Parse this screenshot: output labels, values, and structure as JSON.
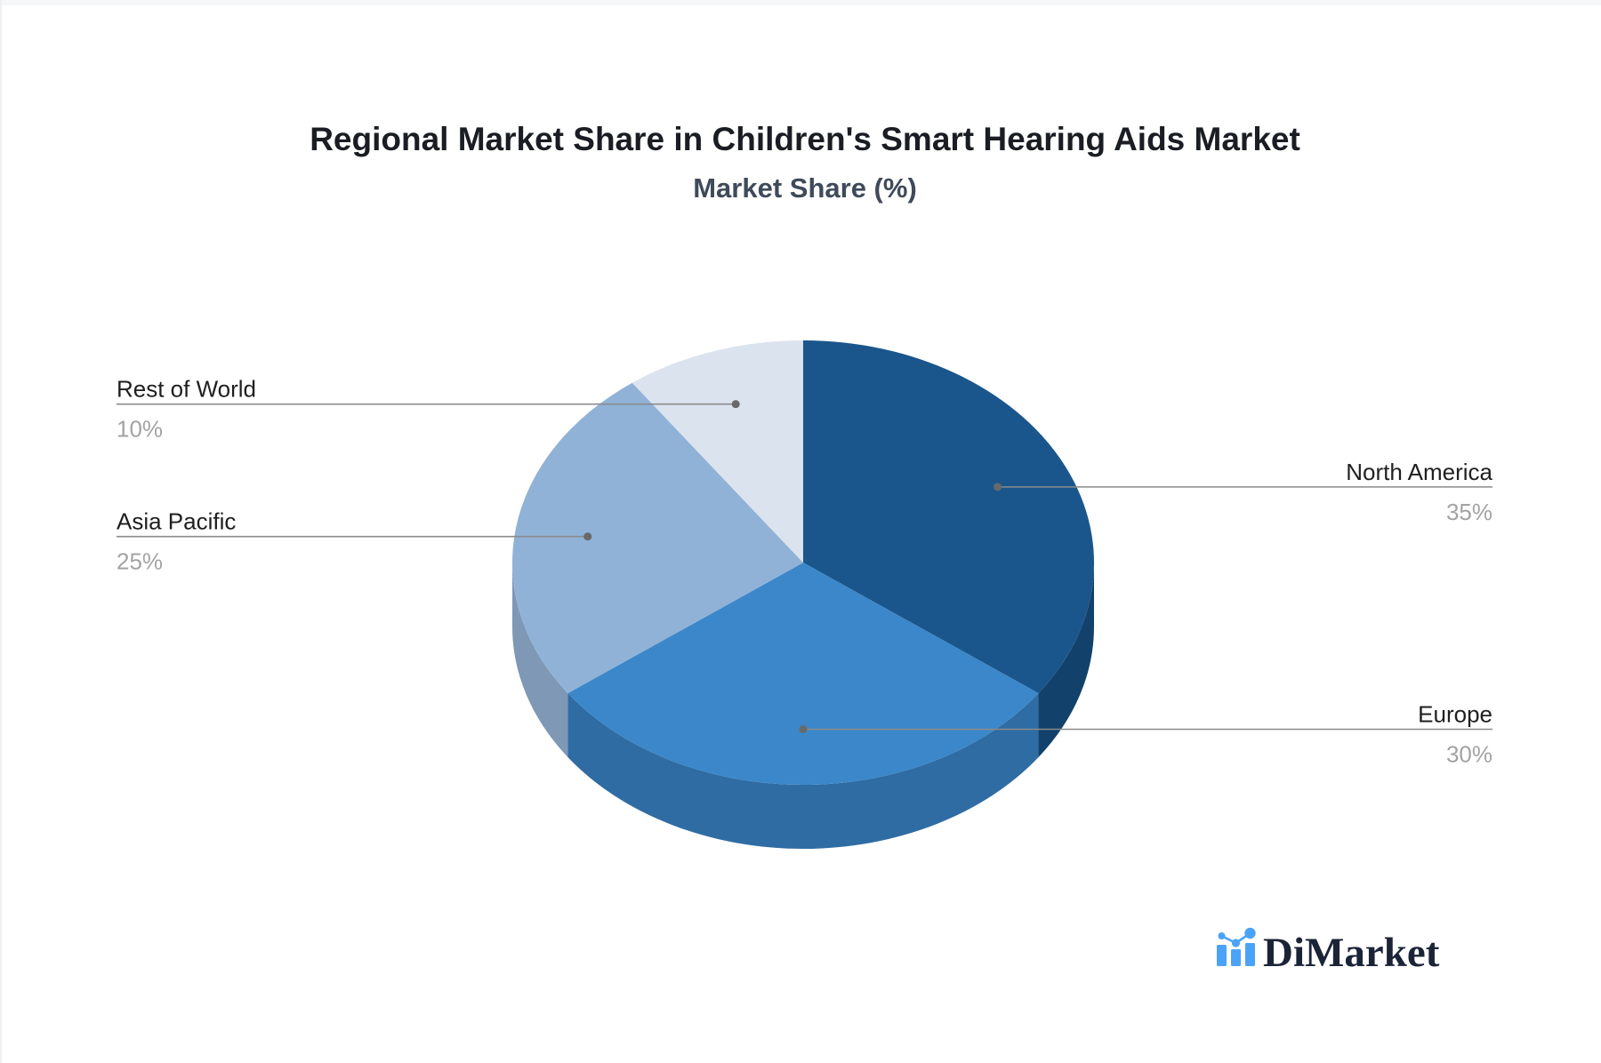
{
  "header": {
    "title": "Regional Market Share in Children's Smart Hearing Aids Market",
    "subtitle": "Market Share (%)",
    "title_color": "#1a1d23",
    "subtitle_color": "#3f4a5a"
  },
  "chart_data": {
    "type": "pie",
    "style": "3d",
    "title": "Regional Market Share in Children's Smart Hearing Aids Market",
    "subtitle": "Market Share (%)",
    "unit": "%",
    "start_angle_deg": 0,
    "direction": "clockwise",
    "legend_position": "callout-labels",
    "slices": [
      {
        "label": "North America",
        "value": 35,
        "display": "35%",
        "color": "#1A568C",
        "side_color": "#12416B",
        "label_side": "right"
      },
      {
        "label": "Europe",
        "value": 30,
        "display": "30%",
        "color": "#3B87C9",
        "side_color": "#2F6CA3",
        "label_side": "right"
      },
      {
        "label": "Asia Pacific",
        "value": 25,
        "display": "25%",
        "color": "#90B2D7",
        "side_color": "#7E98B5",
        "label_side": "left"
      },
      {
        "label": "Rest of World",
        "value": 10,
        "display": "10%",
        "color": "#DBE3EE",
        "side_color": "#C3CEDD",
        "label_side": "left"
      }
    ],
    "colors": {
      "label_text": "#1f1f1f",
      "pct_text": "#a3a3a3",
      "leader_line": "#8b8b8b",
      "leader_dot": "#696969"
    }
  },
  "logo": {
    "text": "DiMarket",
    "text_color": "#1b2437",
    "icon_name": "bar-line-chart-icon",
    "icon_color": "#4BA3F7"
  }
}
